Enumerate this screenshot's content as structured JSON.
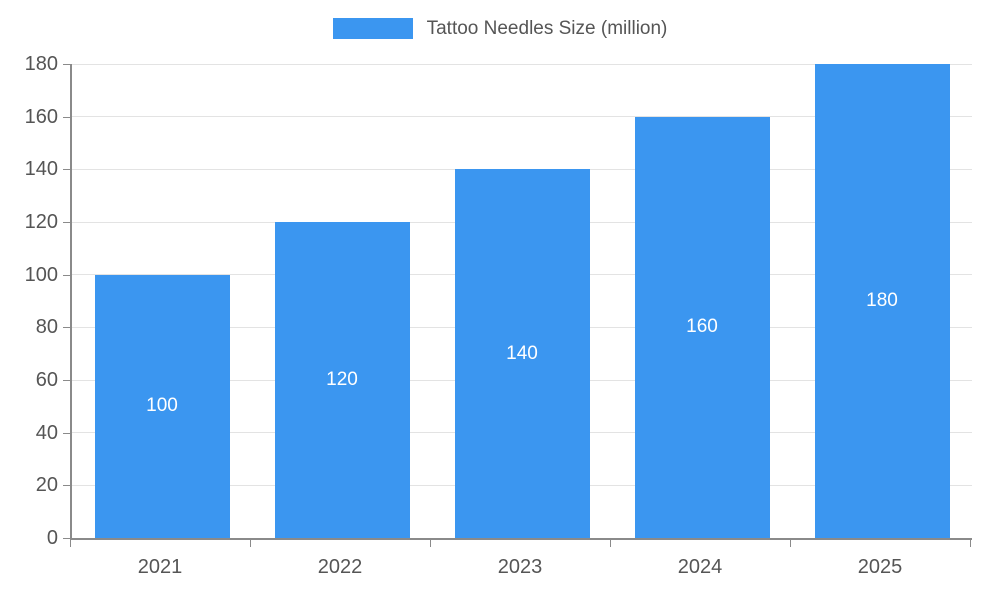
{
  "chart_data": {
    "type": "bar",
    "title": "Tattoo Needles Size (million)",
    "categories": [
      "2021",
      "2022",
      "2023",
      "2024",
      "2025"
    ],
    "values": [
      100,
      120,
      140,
      160,
      180
    ],
    "xlabel": "",
    "ylabel": "",
    "ylim": [
      0,
      180
    ],
    "ytick_step": 20,
    "yticks": [
      0,
      20,
      40,
      60,
      80,
      100,
      120,
      140,
      160,
      180
    ],
    "grid": true,
    "legend_position": "top",
    "bar_color": "#3b96f0",
    "bar_label_color": "#ffffff",
    "axis_text_color": "#555555",
    "gridline_color": "#e3e3e3",
    "axis_line_color": "#8a8a8a",
    "background_color": "#ffffff"
  },
  "legend": {
    "label": "Tattoo Needles Size (million)"
  }
}
